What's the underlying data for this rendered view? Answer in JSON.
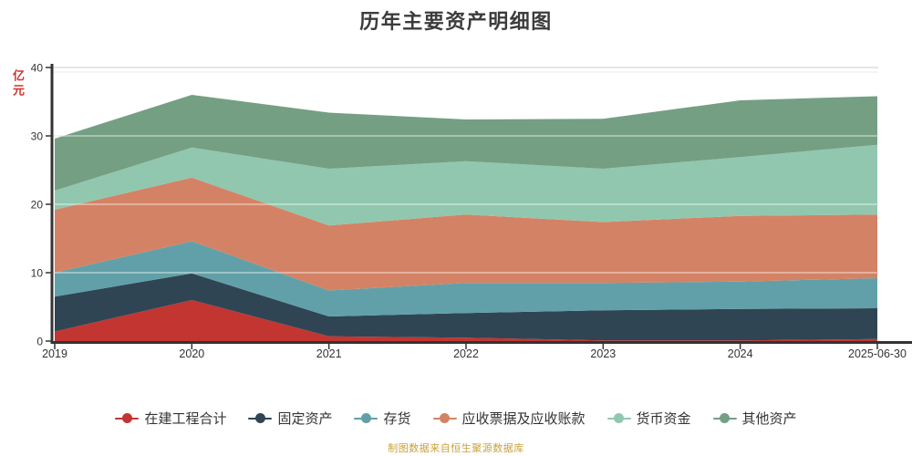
{
  "title": "历年主要资产明细图",
  "y_axis_unit": "亿元",
  "footnote": "制图数据来自恒生聚源数据库",
  "colors": {
    "axis": "#333333",
    "grid": "#dcdcdc",
    "title": "#3c3c3c",
    "unit_label": "#d0342c",
    "footnote": "#c9a13b",
    "legend_text": "#333333"
  },
  "chart_data": {
    "type": "area",
    "stacked": true,
    "title": "历年主要资产明细图",
    "ylabel": "亿元",
    "ylim": [
      0,
      40
    ],
    "yticks": [
      0,
      10,
      20,
      30,
      40
    ],
    "grid": true,
    "legend_position": "bottom",
    "x": [
      "2019",
      "2020",
      "2021",
      "2022",
      "2023",
      "2024",
      "2025-06-30"
    ],
    "series": [
      {
        "name": "在建工程合计",
        "color": "#c23531",
        "values": [
          1.4,
          6.0,
          0.7,
          0.5,
          0.1,
          0.1,
          0.3
        ]
      },
      {
        "name": "固定资产",
        "color": "#2f4554",
        "values": [
          5.1,
          3.9,
          2.9,
          3.6,
          4.4,
          4.6,
          4.5
        ]
      },
      {
        "name": "存货",
        "color": "#61a0a8",
        "values": [
          3.5,
          4.7,
          3.8,
          4.4,
          4.0,
          4.0,
          4.4
        ]
      },
      {
        "name": "应收票据及应收账款",
        "color": "#d48265",
        "values": [
          9.2,
          9.3,
          9.5,
          10.0,
          8.9,
          9.6,
          9.3
        ]
      },
      {
        "name": "货币资金",
        "color": "#91c7ae",
        "values": [
          2.8,
          4.4,
          8.3,
          7.8,
          7.8,
          8.6,
          10.2
        ]
      },
      {
        "name": "其他资产",
        "color": "#749f83",
        "values": [
          7.6,
          7.7,
          8.2,
          6.1,
          7.3,
          8.3,
          7.1
        ]
      }
    ]
  }
}
